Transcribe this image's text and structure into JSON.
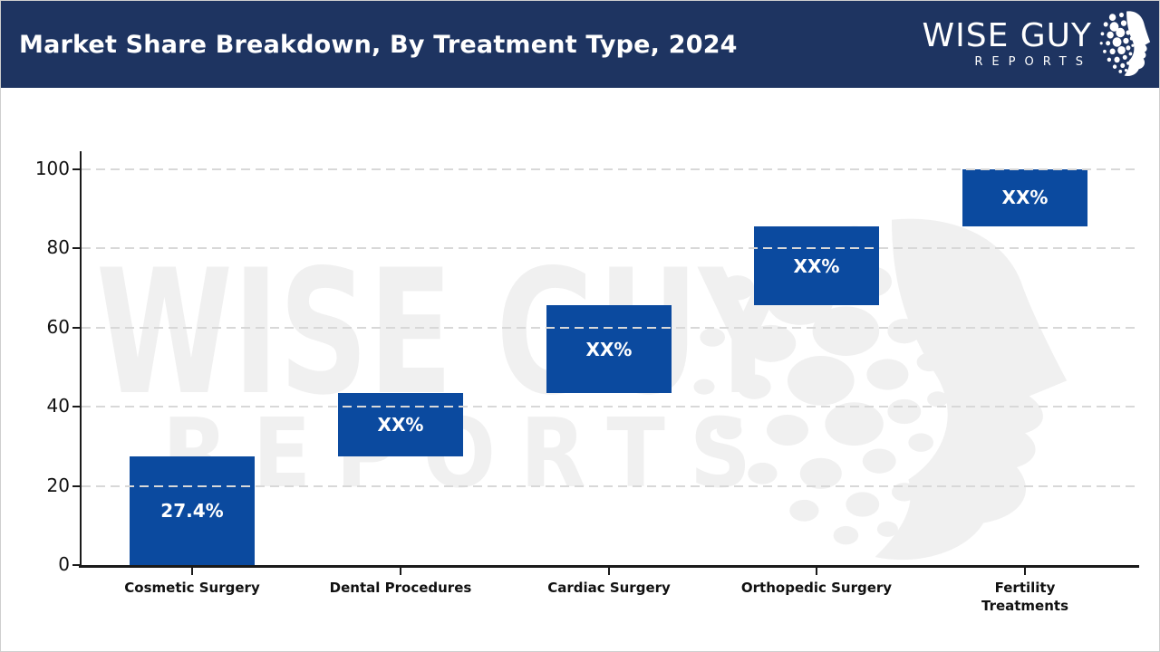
{
  "header": {
    "title": "Market Share Breakdown, By Treatment Type, 2024",
    "logo": {
      "line1": "WISE GUY",
      "line2": "REPORTS"
    }
  },
  "watermark": {
    "line1": "WISE GUY",
    "line2": "REPORTS"
  },
  "colors": {
    "header_bg": "#1e3461",
    "bar": "#0b4a9f",
    "bar_label": "#ffffff",
    "gridline": "#d8d8d8",
    "axis": "#1a1a1a",
    "watermark": "#f0f0f0",
    "page_border": "#cfcfcf"
  },
  "icons": {
    "logo_head": "wiseguy-head-icon",
    "watermark_head": "wiseguy-head-watermark"
  },
  "chart_data": {
    "type": "bar",
    "subtype": "waterfall",
    "title": "Market Share Breakdown, By Treatment Type, 2024",
    "categories": [
      "Cosmetic Surgery",
      "Dental Procedures",
      "Cardiac Surgery",
      "Orthopedic Surgery",
      "Fertility\nTreatments"
    ],
    "segments": [
      {
        "category": "Cosmetic Surgery",
        "start": 0,
        "end": 27.4,
        "label": "27.4%"
      },
      {
        "category": "Dental Procedures",
        "start": 27.4,
        "end": 43.5,
        "label": "XX%"
      },
      {
        "category": "Cardiac Surgery",
        "start": 43.5,
        "end": 65.5,
        "label": "XX%"
      },
      {
        "category": "Orthopedic Surgery",
        "start": 65.5,
        "end": 85.5,
        "label": "XX%"
      },
      {
        "category": "Fertility Treatments",
        "start": 85.5,
        "end": 100,
        "label": "XX%"
      }
    ],
    "xlabel": "",
    "ylabel": "",
    "yticks": [
      0,
      20,
      40,
      60,
      80,
      100
    ],
    "ylim": [
      0,
      105
    ],
    "grid": "horizontal-dashed",
    "legend": "none",
    "bar_color": "#0b4a9f",
    "bar_label_color": "#ffffff"
  }
}
